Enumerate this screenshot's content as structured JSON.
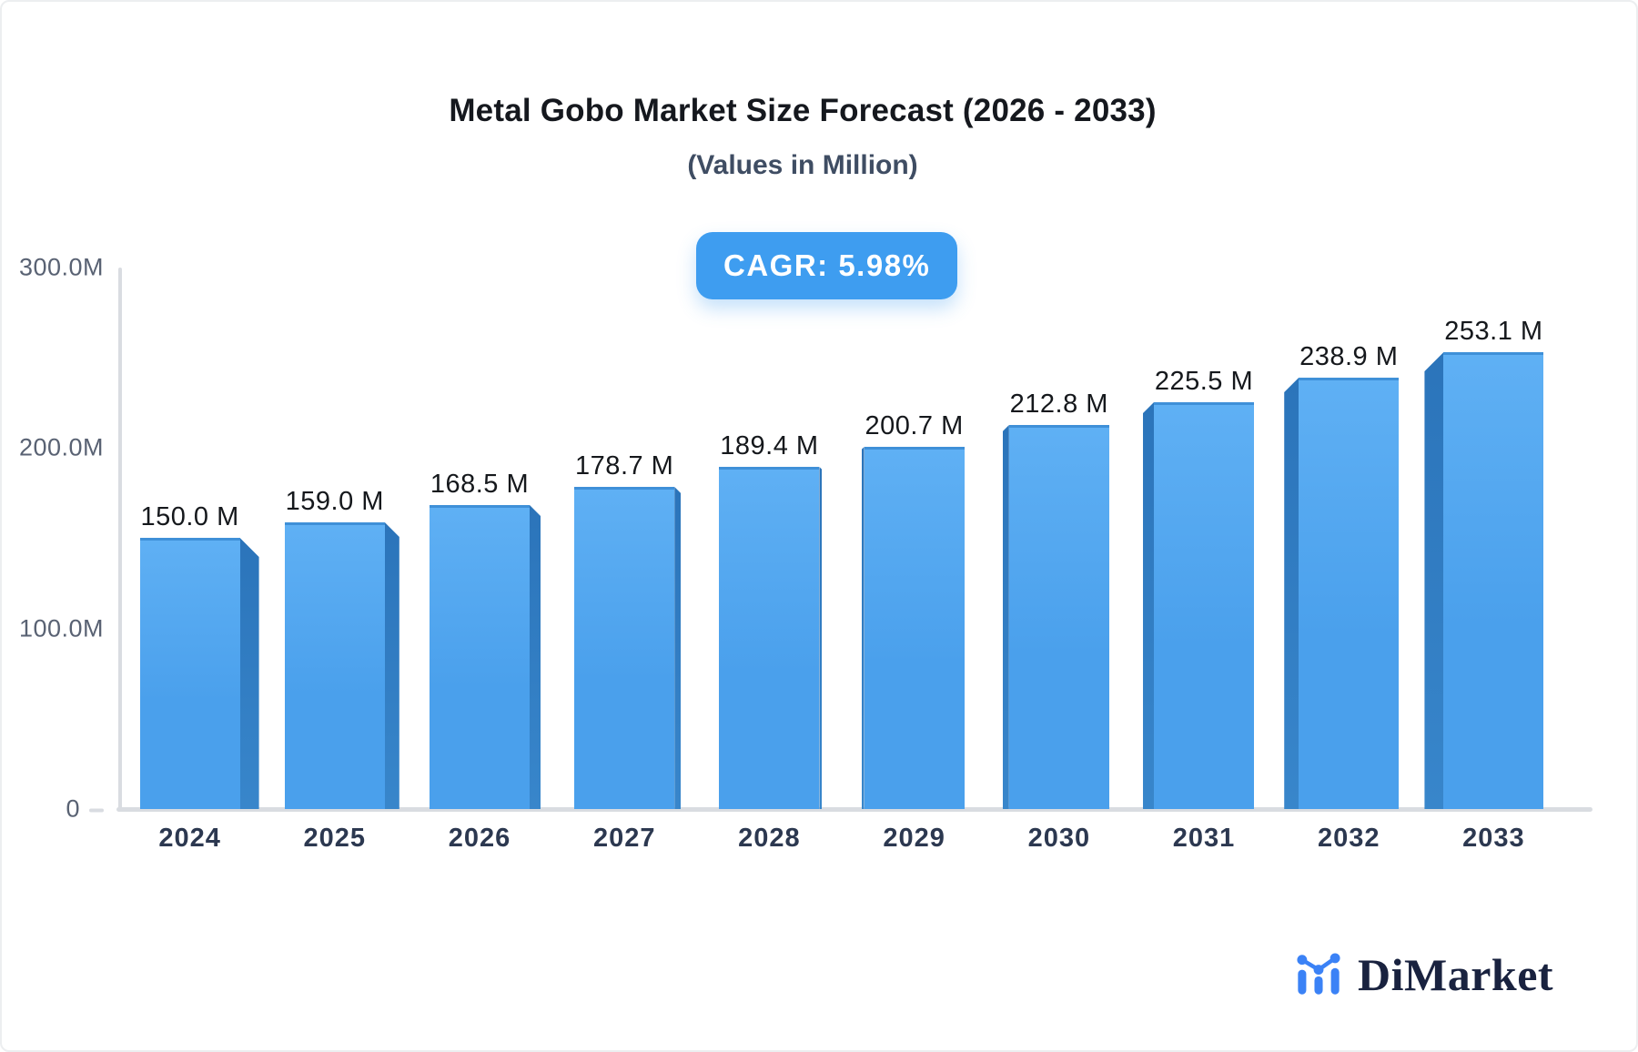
{
  "header": {
    "title": "Metal Gobo Market Size Forecast (2026 - 2033)",
    "subtitle": "(Values in Million)",
    "cagr_badge": "CAGR: 5.98%"
  },
  "chart_data": {
    "type": "bar",
    "title": "Metal Gobo Market Size Forecast (2026 - 2033)",
    "subtitle": "(Values in Million)",
    "annotation": "CAGR: 5.98%",
    "categories": [
      "2024",
      "2025",
      "2026",
      "2027",
      "2028",
      "2029",
      "2030",
      "2031",
      "2032",
      "2033"
    ],
    "values": [
      150.0,
      159.0,
      168.5,
      178.7,
      189.4,
      200.7,
      212.8,
      225.5,
      238.9,
      253.1
    ],
    "value_labels": [
      "150.0 M",
      "159.0 M",
      "168.5 M",
      "178.7 M",
      "189.4 M",
      "200.7 M",
      "212.8 M",
      "225.5 M",
      "238.9 M",
      "253.1 M"
    ],
    "xlabel": "",
    "ylabel": "",
    "ylim": [
      0,
      300
    ],
    "y_ticks": [
      {
        "label": "300.0M",
        "value": 300,
        "dash": false
      },
      {
        "label": "200.0M",
        "value": 200,
        "dash": false
      },
      {
        "label": "100.0M",
        "value": 100,
        "dash": false
      },
      {
        "label": "0",
        "value": 0,
        "dash": true
      }
    ],
    "grid": false,
    "legend": false,
    "style": "3d-bars-one-point-perspective-center"
  },
  "colors": {
    "title_text": "#15181e",
    "subtitle_text": "#3f4d63",
    "badge_bg": "#3e9df0",
    "badge_text": "#ffffff",
    "bar_face": "#4aa0ec",
    "bar_face_top": "#5fb0f4",
    "bar_side": "#2b74ba",
    "bar_side_light": "#3886cb",
    "bar_top_edge": "#3f90d8",
    "axis": "#d9dce1",
    "x_label_text": "#2c3850",
    "y_label_text": "#596273",
    "value_label_text": "#15181c",
    "brand_text": "#19223f",
    "brand_icon": "#3b82f6"
  },
  "branding": {
    "name": "DiMarket"
  }
}
